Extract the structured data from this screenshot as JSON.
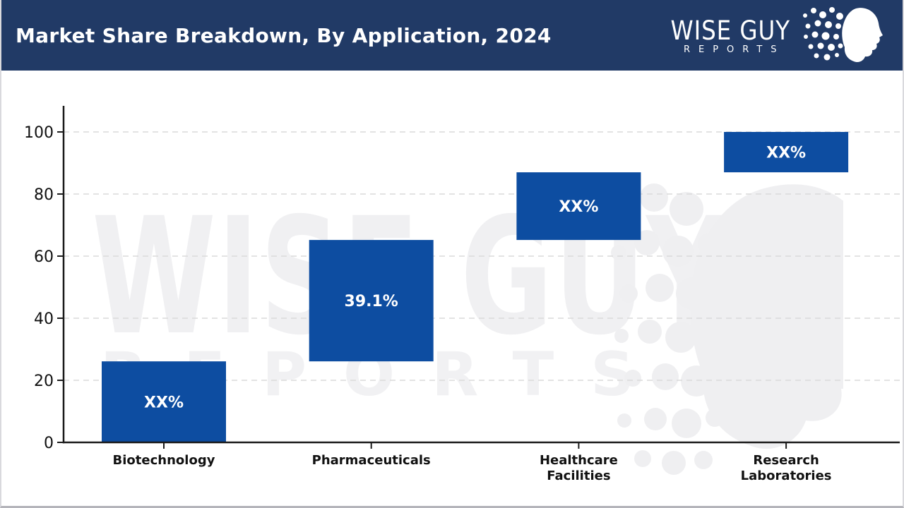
{
  "header": {
    "title": "Market Share Breakdown, By Application, 2024",
    "bg_color": "#213a66",
    "logo": {
      "name": "WISE GUY",
      "subtitle": "REPORTS"
    }
  },
  "watermark": {
    "line1": "WISE GUY",
    "line2": "REPORTS"
  },
  "chart_data": {
    "type": "bar",
    "subtype": "floating-segment-waterfall",
    "title": "Market Share Breakdown, By Application, 2024",
    "categories": [
      "Biotechnology",
      "Pharmaceuticals",
      "Healthcare Facilities",
      "Research Laboratories"
    ],
    "category_label_lines": [
      [
        "Biotechnology"
      ],
      [
        "Pharmaceuticals"
      ],
      [
        "Healthcare",
        "Facilities"
      ],
      [
        "Research",
        "Laboratories"
      ]
    ],
    "bars": [
      {
        "category": "Biotechnology",
        "start": 0,
        "end": 26.1,
        "label": "XX%"
      },
      {
        "category": "Pharmaceuticals",
        "start": 26.1,
        "end": 65.2,
        "label": "39.1%"
      },
      {
        "category": "Healthcare Facilities",
        "start": 65.2,
        "end": 87.0,
        "label": "XX%"
      },
      {
        "category": "Research Laboratories",
        "start": 87.0,
        "end": 100.0,
        "label": "XX%"
      }
    ],
    "ylim": [
      0,
      100
    ],
    "yticks": [
      0,
      20,
      40,
      60,
      80,
      100
    ],
    "xlabel": "",
    "ylabel": "",
    "grid": "horizontal-dashed",
    "legend": "none",
    "bar_color": "#0d4da1",
    "bar_label_color": "#ffffff",
    "axis_color": "#1a1a1a",
    "tick_label_color": "#111111",
    "grid_color": "#dadada"
  }
}
